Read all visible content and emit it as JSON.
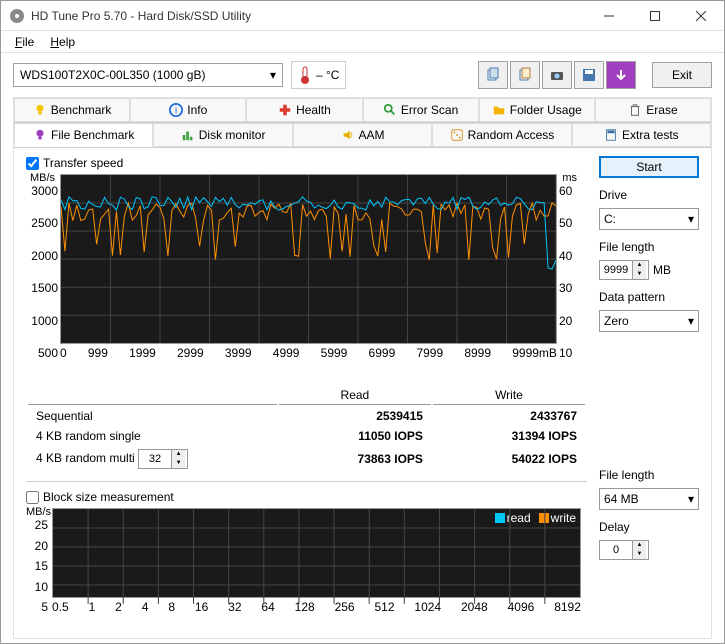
{
  "window": {
    "title": "HD Tune Pro 5.70 - Hard Disk/SSD Utility"
  },
  "menu": {
    "file": "File",
    "help": "Help"
  },
  "toolbar": {
    "drive": "WDS100T2X0C-00L350 (1000 gB)",
    "temp": "– °C",
    "exit": "Exit"
  },
  "tabs_row1": [
    {
      "label": "Benchmark",
      "icon": "bulb",
      "color": "#f2c400"
    },
    {
      "label": "Info",
      "icon": "info",
      "color": "#1e6fd9"
    },
    {
      "label": "Health",
      "icon": "plus",
      "color": "#d93a2b"
    },
    {
      "label": "Error Scan",
      "icon": "search",
      "color": "#2e9b3a"
    },
    {
      "label": "Folder Usage",
      "icon": "folder",
      "color": "#f2b200"
    },
    {
      "label": "Erase",
      "icon": "trash",
      "color": "#555"
    }
  ],
  "tabs_row2": [
    {
      "label": "File Benchmark",
      "icon": "bulb",
      "color": "#a040c0",
      "active": true
    },
    {
      "label": "Disk monitor",
      "icon": "bars",
      "color": "#3aa33a"
    },
    {
      "label": "AAM",
      "icon": "speaker",
      "color": "#e8b000"
    },
    {
      "label": "Random Access",
      "icon": "dice",
      "color": "#d98a00"
    },
    {
      "label": "Extra tests",
      "icon": "calc",
      "color": "#3a6fa3"
    }
  ],
  "transfer": {
    "checkbox_label": "Transfer speed",
    "checked": true,
    "y_left_label": "MB/s",
    "y_right_label": "ms",
    "y_left_ticks": [
      "3000",
      "2500",
      "2000",
      "1500",
      "1000",
      "500"
    ],
    "y_right_ticks": [
      "60",
      "50",
      "40",
      "30",
      "20",
      "10"
    ],
    "x_ticks": [
      "0",
      "999",
      "1999",
      "2999",
      "3999",
      "4999",
      "5999",
      "6999",
      "7999",
      "8999",
      "9999mB"
    ],
    "colors": {
      "read": "#00c8ff",
      "write": "#ff9000",
      "grid": "#444",
      "bg": "#1a1a1a"
    }
  },
  "results": {
    "headers": [
      "",
      "Read",
      "Write"
    ],
    "rows": [
      {
        "label": "Sequential",
        "read": "2539415",
        "write": "2433767"
      },
      {
        "label": "4 KB random single",
        "read": "11050 IOPS",
        "write": "31394 IOPS"
      },
      {
        "label": "4 KB random multi",
        "read": "73863 IOPS",
        "write": "54022 IOPS",
        "spinner": "32"
      }
    ]
  },
  "block": {
    "checkbox_label": "Block size measurement",
    "checked": false,
    "y_label": "MB/s",
    "y_ticks": [
      "25",
      "20",
      "15",
      "10",
      "5"
    ],
    "x_ticks": [
      "0.5",
      "1",
      "2",
      "4",
      "8",
      "16",
      "32",
      "64",
      "128",
      "256",
      "512",
      "1024",
      "2048",
      "4096",
      "8192"
    ],
    "legend": {
      "read": "read",
      "write": "write"
    },
    "colors": {
      "read": "#00c8ff",
      "write": "#ff9000"
    }
  },
  "side": {
    "start": "Start",
    "drive_label": "Drive",
    "drive_value": "C:",
    "file_length_label": "File length",
    "file_length_value": "9999",
    "file_length_unit": "MB",
    "data_pattern_label": "Data pattern",
    "data_pattern_value": "Zero",
    "file_length2_label": "File length",
    "file_length2_value": "64 MB",
    "delay_label": "Delay",
    "delay_value": "0"
  }
}
